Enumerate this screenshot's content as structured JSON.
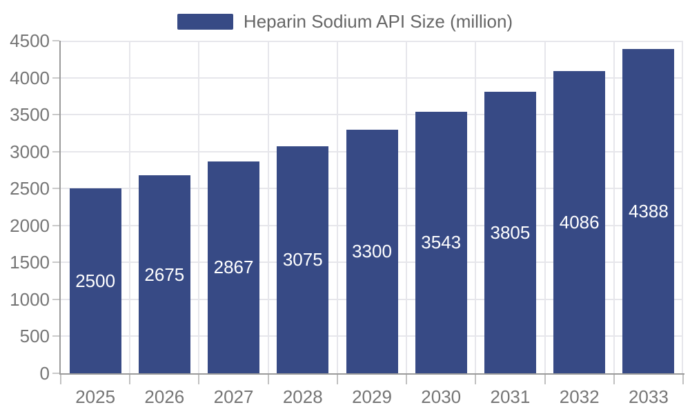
{
  "legend": {
    "items": [
      {
        "label": "Heparin Sodium API Size (million)",
        "color": "#374a85"
      }
    ]
  },
  "chart_data": {
    "type": "bar",
    "title": "",
    "categories": [
      "2025",
      "2026",
      "2027",
      "2028",
      "2029",
      "2030",
      "2031",
      "2032",
      "2033"
    ],
    "series": [
      {
        "name": "Heparin Sodium API Size (million)",
        "values": [
          2500,
          2675,
          2867,
          3075,
          3300,
          3543,
          3805,
          4086,
          4388
        ],
        "color": "#374a85"
      }
    ],
    "xlabel": "",
    "ylabel": "",
    "ylim": [
      0,
      4500
    ],
    "ytick_step": 500,
    "yticks": [
      0,
      500,
      1000,
      1500,
      2000,
      2500,
      3000,
      3500,
      4000,
      4500
    ],
    "grid": true,
    "legend_position": "top",
    "value_labels": "inside-center",
    "value_label_color": "#ffffff",
    "axis_label_color": "#757575",
    "gridline_color": "#e6e6eb",
    "axis_line_color": "#9a9a9a"
  }
}
